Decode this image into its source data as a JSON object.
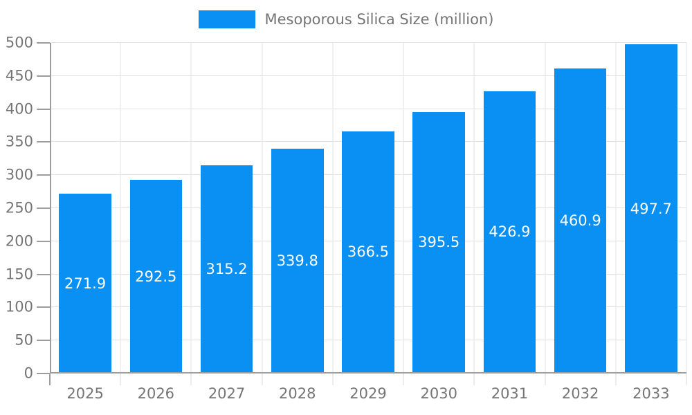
{
  "chart_data": {
    "type": "bar",
    "title": "",
    "legend": {
      "label": "Mesoporous Silica Size (million)",
      "position": "top-center"
    },
    "categories": [
      "2025",
      "2026",
      "2027",
      "2028",
      "2029",
      "2030",
      "2031",
      "2032",
      "2033"
    ],
    "series": [
      {
        "name": "Mesoporous Silica Size (million)",
        "values": [
          271.9,
          292.5,
          315.2,
          339.8,
          366.5,
          395.5,
          426.9,
          460.9,
          497.7
        ]
      }
    ],
    "value_labels_shown": true,
    "xlabel": "",
    "ylabel": "",
    "ylim": [
      0,
      500
    ],
    "ytick_step": 50,
    "grid": true,
    "colors": {
      "bar": "#0a8ff2",
      "gridline": "#e2e2e2",
      "axis": "#9c9c9c",
      "tick_minor": "#d9d9d9",
      "axis_label": "#757575",
      "value_label": "#ffffff",
      "background": "#ffffff"
    }
  }
}
